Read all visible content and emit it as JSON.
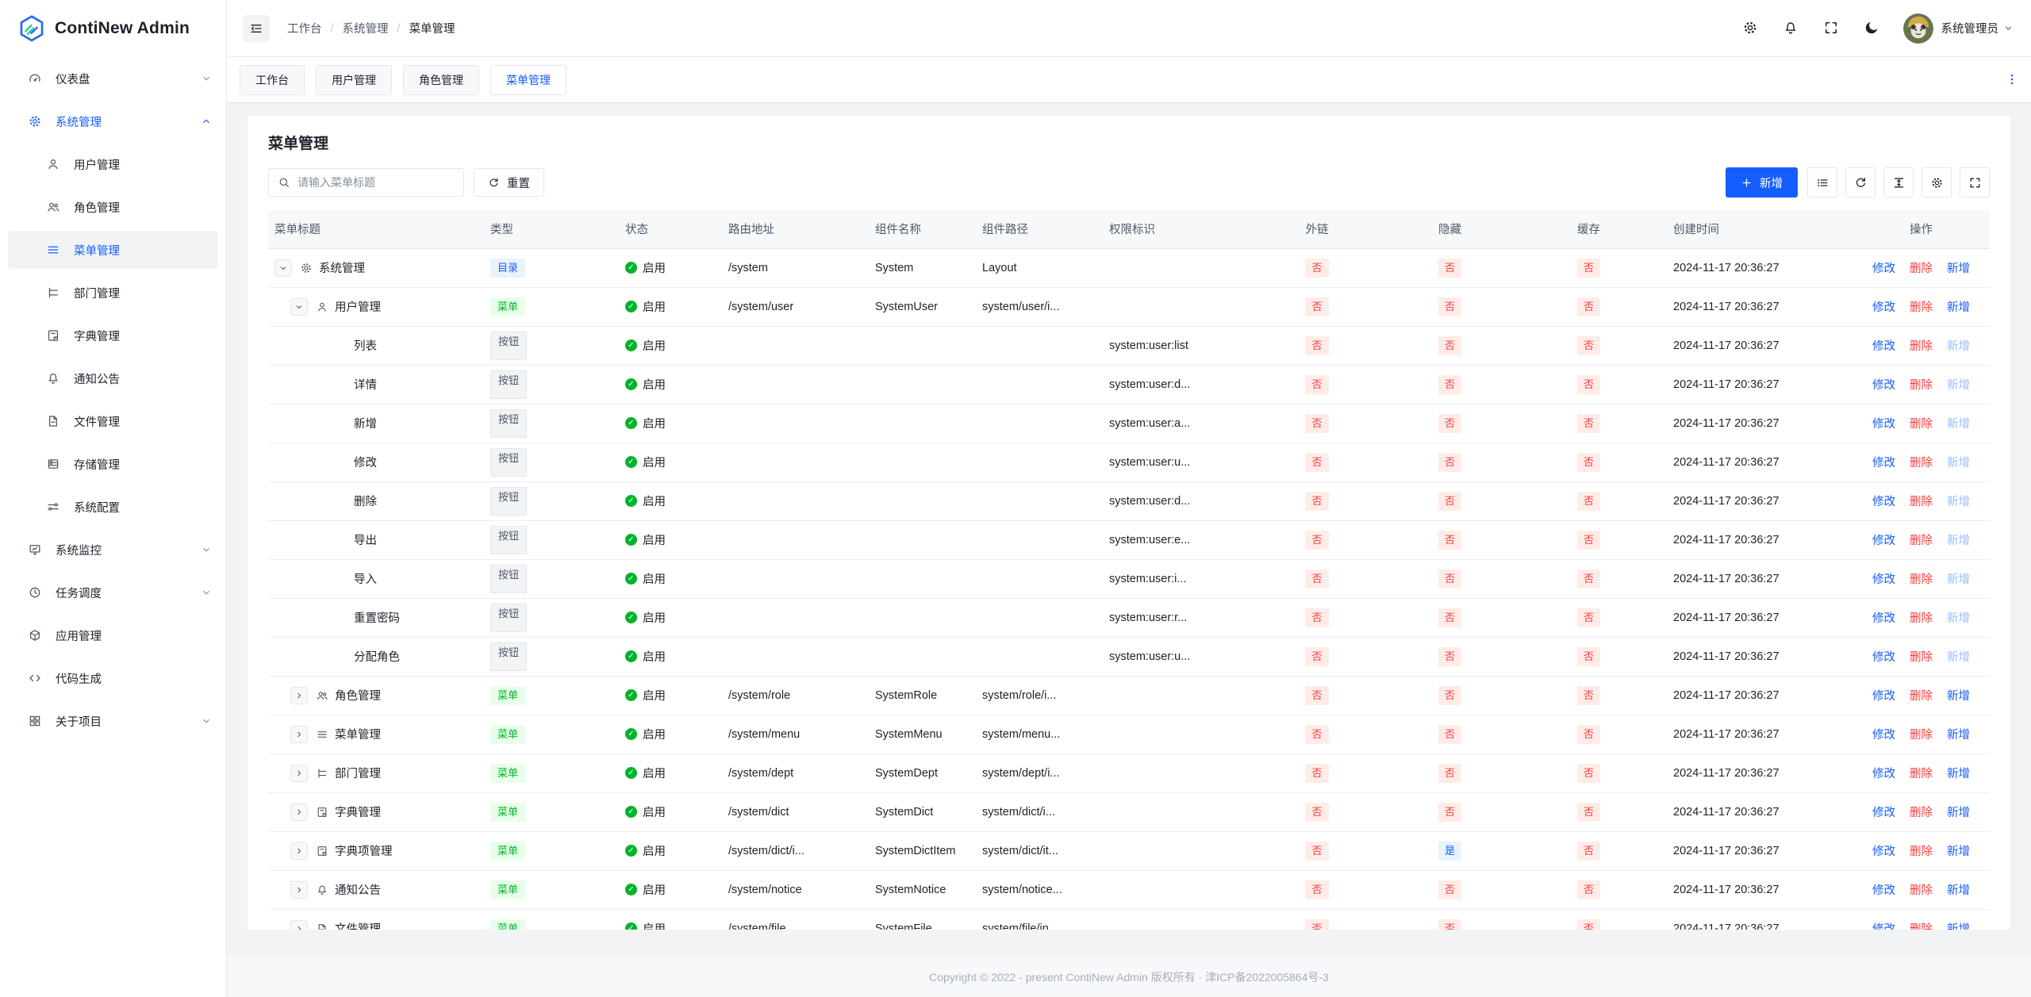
{
  "app": {
    "title": "ContiNew Admin"
  },
  "colors": {
    "primary": "#165dff",
    "success": "#00b42a",
    "danger": "#f53f3f",
    "warning_bg": "#ffece8",
    "tag_blue_bg": "#e8f3ff",
    "tag_green_bg": "#e8ffea"
  },
  "sidebar": {
    "items": [
      {
        "key": "dashboard",
        "label": "仪表盘",
        "icon": "gauge",
        "type": "top",
        "chevron": "down"
      },
      {
        "key": "system",
        "label": "系统管理",
        "icon": "gear",
        "type": "top",
        "chevron": "up",
        "active": true
      },
      {
        "key": "user",
        "label": "用户管理",
        "icon": "user",
        "type": "sub"
      },
      {
        "key": "role",
        "label": "角色管理",
        "icon": "users",
        "type": "sub"
      },
      {
        "key": "menu",
        "label": "菜单管理",
        "icon": "menu",
        "type": "sub",
        "selected": true
      },
      {
        "key": "dept",
        "label": "部门管理",
        "icon": "dept",
        "type": "sub"
      },
      {
        "key": "dict",
        "label": "字典管理",
        "icon": "dict",
        "type": "sub"
      },
      {
        "key": "notice",
        "label": "通知公告",
        "icon": "bell",
        "type": "sub"
      },
      {
        "key": "file",
        "label": "文件管理",
        "icon": "file",
        "type": "sub"
      },
      {
        "key": "storage",
        "label": "存储管理",
        "icon": "storage",
        "type": "sub"
      },
      {
        "key": "config",
        "label": "系统配置",
        "icon": "sliders",
        "type": "sub"
      },
      {
        "key": "monitor",
        "label": "系统监控",
        "icon": "monitor",
        "type": "top",
        "chevron": "down"
      },
      {
        "key": "schedule",
        "label": "任务调度",
        "icon": "clock",
        "type": "top",
        "chevron": "down"
      },
      {
        "key": "apps",
        "label": "应用管理",
        "icon": "cube",
        "type": "top"
      },
      {
        "key": "codegen",
        "label": "代码生成",
        "icon": "code",
        "type": "top"
      },
      {
        "key": "about",
        "label": "关于项目",
        "icon": "grid",
        "type": "top",
        "chevron": "down"
      }
    ]
  },
  "header": {
    "breadcrumb": [
      "工作台",
      "系统管理",
      "菜单管理"
    ],
    "action_icons": [
      "settings",
      "notifications",
      "fullscreen",
      "dark-mode"
    ],
    "user": "系统管理员"
  },
  "tabs": [
    {
      "label": "工作台"
    },
    {
      "label": "用户管理"
    },
    {
      "label": "角色管理"
    },
    {
      "label": "菜单管理",
      "active": true
    }
  ],
  "page": {
    "title": "菜单管理",
    "search_placeholder": "请输入菜单标题",
    "reset_label": "重置",
    "add_label": "新增",
    "toolbar_icons": [
      "list-view",
      "refresh",
      "row-height",
      "column-settings",
      "fullscreen"
    ]
  },
  "table": {
    "columns": [
      "菜单标题",
      "类型",
      "状态",
      "路由地址",
      "组件名称",
      "组件路径",
      "权限标识",
      "外链",
      "隐藏",
      "缓存",
      "创建时间",
      "操作"
    ],
    "action_labels": {
      "edit": "修改",
      "delete": "删除",
      "add": "新增"
    },
    "defaults": {
      "status": "启用",
      "external": "否",
      "hidden": "否",
      "cache": "否",
      "created": "2024-11-17 20:36:27",
      "route": "",
      "component": "",
      "path": "",
      "perm": "",
      "expander": null,
      "icon": null,
      "add_disabled": false
    },
    "rows": [
      {
        "title": "系统管理",
        "icon": "gear",
        "level": 0,
        "expander": "down",
        "type": {
          "label": "目录",
          "style": "dir"
        },
        "route": "/system",
        "component": "System",
        "path": "Layout"
      },
      {
        "title": "用户管理",
        "icon": "user",
        "level": 1,
        "expander": "down",
        "type": {
          "label": "菜单",
          "style": "menu"
        },
        "route": "/system/user",
        "component": "SystemUser",
        "path": "system/user/i..."
      },
      {
        "title": "列表",
        "level": 2,
        "type": {
          "label": "按钮",
          "style": "btn"
        },
        "perm": "system:user:list",
        "add_disabled": true
      },
      {
        "title": "详情",
        "level": 2,
        "type": {
          "label": "按钮",
          "style": "btn"
        },
        "perm": "system:user:d...",
        "add_disabled": true
      },
      {
        "title": "新增",
        "level": 2,
        "type": {
          "label": "按钮",
          "style": "btn"
        },
        "perm": "system:user:a...",
        "add_disabled": true
      },
      {
        "title": "修改",
        "level": 2,
        "type": {
          "label": "按钮",
          "style": "btn"
        },
        "perm": "system:user:u...",
        "add_disabled": true
      },
      {
        "title": "删除",
        "level": 2,
        "type": {
          "label": "按钮",
          "style": "btn"
        },
        "perm": "system:user:d...",
        "add_disabled": true
      },
      {
        "title": "导出",
        "level": 2,
        "type": {
          "label": "按钮",
          "style": "btn"
        },
        "perm": "system:user:e...",
        "add_disabled": true
      },
      {
        "title": "导入",
        "level": 2,
        "type": {
          "label": "按钮",
          "style": "btn"
        },
        "perm": "system:user:i...",
        "add_disabled": true
      },
      {
        "title": "重置密码",
        "level": 2,
        "type": {
          "label": "按钮",
          "style": "btn"
        },
        "perm": "system:user:r...",
        "add_disabled": true
      },
      {
        "title": "分配角色",
        "level": 2,
        "type": {
          "label": "按钮",
          "style": "btn"
        },
        "perm": "system:user:u...",
        "add_disabled": true
      },
      {
        "title": "角色管理",
        "icon": "users",
        "level": 1,
        "expander": "right",
        "type": {
          "label": "菜单",
          "style": "menu"
        },
        "route": "/system/role",
        "component": "SystemRole",
        "path": "system/role/i..."
      },
      {
        "title": "菜单管理",
        "icon": "menu",
        "level": 1,
        "expander": "right",
        "type": {
          "label": "菜单",
          "style": "menu"
        },
        "route": "/system/menu",
        "component": "SystemMenu",
        "path": "system/menu..."
      },
      {
        "title": "部门管理",
        "icon": "dept",
        "level": 1,
        "expander": "right",
        "type": {
          "label": "菜单",
          "style": "menu"
        },
        "route": "/system/dept",
        "component": "SystemDept",
        "path": "system/dept/i..."
      },
      {
        "title": "字典管理",
        "icon": "dict",
        "level": 1,
        "expander": "right",
        "type": {
          "label": "菜单",
          "style": "menu"
        },
        "route": "/system/dict",
        "component": "SystemDict",
        "path": "system/dict/i..."
      },
      {
        "title": "字典项管理",
        "icon": "dict",
        "level": 1,
        "expander": "right",
        "type": {
          "label": "菜单",
          "style": "menu"
        },
        "route": "/system/dict/i...",
        "component": "SystemDictItem",
        "path": "system/dict/it...",
        "hidden": "是"
      },
      {
        "title": "通知公告",
        "icon": "bell",
        "level": 1,
        "expander": "right",
        "type": {
          "label": "菜单",
          "style": "menu"
        },
        "route": "/system/notice",
        "component": "SystemNotice",
        "path": "system/notice..."
      },
      {
        "title": "文件管理",
        "icon": "file",
        "level": 1,
        "expander": "right",
        "type": {
          "label": "菜单",
          "style": "menu"
        },
        "route": "/system/file",
        "component": "SystemFile",
        "path": "system/file/in"
      }
    ]
  },
  "footer": {
    "copyright": "Copyright © 2022 - present ContiNew Admin 版权所有 · 津ICP备2022005864号-3"
  }
}
